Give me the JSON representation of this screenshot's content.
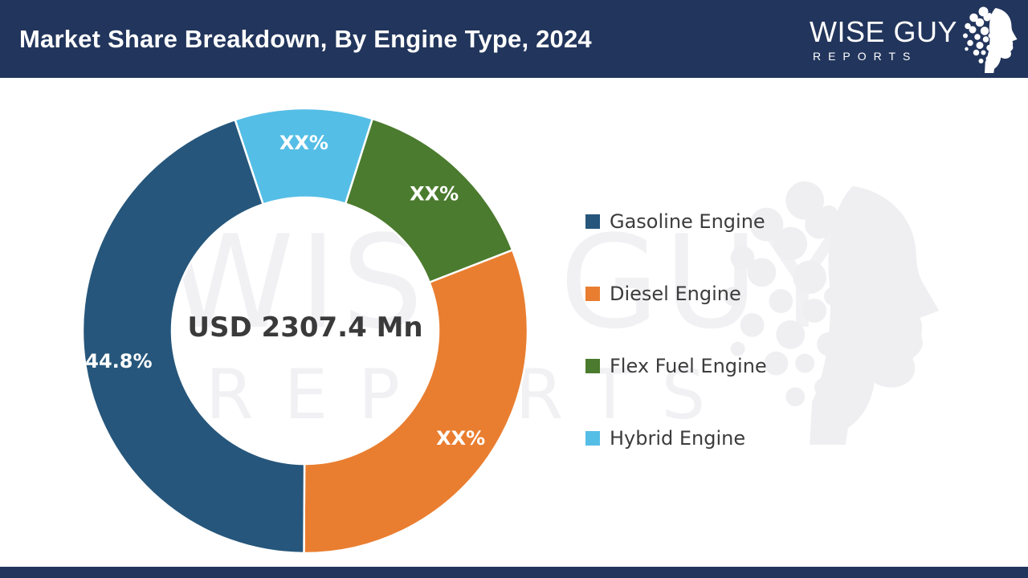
{
  "header": {
    "title": "Market Share Breakdown, By Engine Type, 2024",
    "bg_color": "#22355C",
    "brand": {
      "name": "WISE GUY",
      "sub": "REPORTS"
    }
  },
  "footer": {
    "bg_color": "#22355C"
  },
  "watermark": {
    "line1": "WISE GUY",
    "line2": "REPORTS"
  },
  "chart_data": {
    "type": "donut",
    "title": "Market Share Breakdown, By Engine Type, 2024",
    "center_label": "USD 2307.4 Mn",
    "legend_position": "right",
    "start_angle_deg": -18.4,
    "draw_order_clockwise_from_top": [
      "Hybrid Engine",
      "Flex Fuel Engine",
      "Diesel Engine",
      "Gasoline Engine"
    ],
    "series": [
      {
        "name": "Gasoline Engine",
        "value_pct": 44.8,
        "display_label": "44.8%",
        "color": "#26567B"
      },
      {
        "name": "Diesel Engine",
        "value_pct": 31.0,
        "display_label": "XX%",
        "color": "#E97E30"
      },
      {
        "name": "Flex Fuel Engine",
        "value_pct": 14.2,
        "display_label": "XX%",
        "color": "#4B7B2E"
      },
      {
        "name": "Hybrid Engine",
        "value_pct": 10.0,
        "display_label": "XX%",
        "color": "#55BEE6"
      }
    ],
    "geometry_note": "white page, donut center left-of-middle, legend right",
    "colors": {
      "slice_label_text": "#FFFFFF",
      "center_label_text": "#3A3A3A",
      "legend_text": "#3C3C3C",
      "watermark": "#F1F1F4"
    }
  }
}
